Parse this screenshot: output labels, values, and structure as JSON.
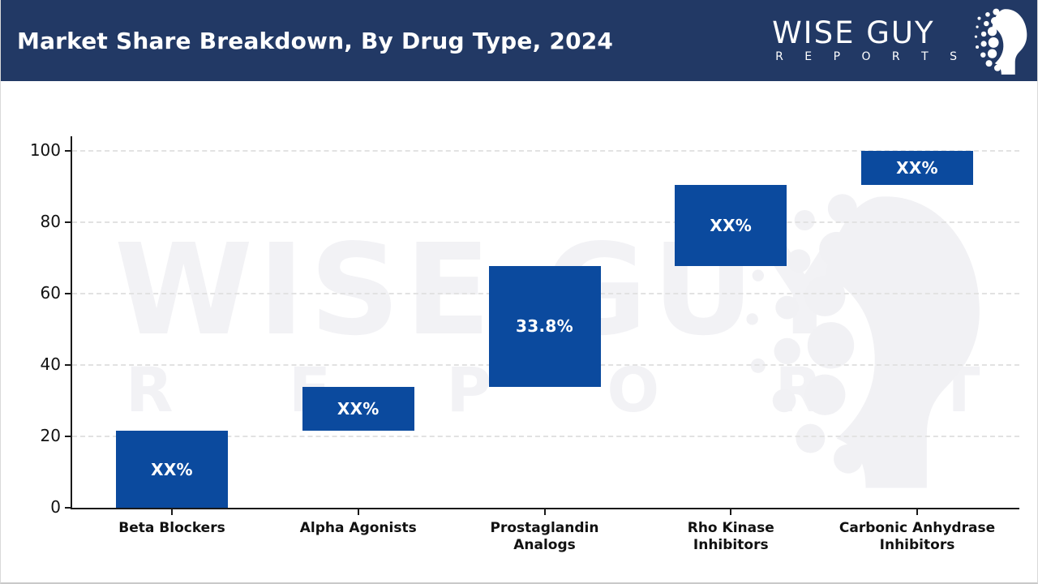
{
  "header": {
    "title": "Market Share Breakdown, By Drug Type, 2024",
    "background_color": "#223965",
    "logo": {
      "wordmark": "WISE GUY",
      "subtext": "R E P O R T S"
    }
  },
  "watermark": {
    "line1": "WISE GUY",
    "line2": "R E P O R T S"
  },
  "chart_data": {
    "type": "bar",
    "subtype": "waterfall-stacked-percentage",
    "title": "Market Share Breakdown, By Drug Type, 2024",
    "xlabel": "",
    "ylabel": "",
    "ylim": [
      0,
      100
    ],
    "yticks": [
      0,
      20,
      40,
      60,
      80,
      100
    ],
    "grid": "horizontal-dashed",
    "legend": "none",
    "bar_color": "#0b4a9e",
    "bar_label_color": "#ffffff",
    "categories": [
      "Beta Blockers",
      "Alpha Agonists",
      "Prostaglandin Analogs",
      "Rho Kinase Inhibitors",
      "Carbonic Anhydrase Inhibitors"
    ],
    "category_lines": [
      [
        "Beta Blockers"
      ],
      [
        "Alpha Agonists"
      ],
      [
        "Prostaglandin",
        "Analogs"
      ],
      [
        "Rho Kinase",
        "Inhibitors"
      ],
      [
        "Carbonic Anhydrase",
        "Inhibitors"
      ]
    ],
    "segments": [
      {
        "category": "Beta Blockers",
        "start": 0,
        "end": 21.5,
        "share_pct_est": 21.5,
        "label": "XX%"
      },
      {
        "category": "Alpha Agonists",
        "start": 21.5,
        "end": 33.9,
        "share_pct_est": 12.4,
        "label": "XX%"
      },
      {
        "category": "Prostaglandin Analogs",
        "start": 33.9,
        "end": 67.7,
        "share_pct_est": 33.8,
        "label": "33.8%"
      },
      {
        "category": "Rho Kinase Inhibitors",
        "start": 67.7,
        "end": 90.4,
        "share_pct_est": 22.7,
        "label": "XX%"
      },
      {
        "category": "Carbonic Anhydrase Inhibitors",
        "start": 90.4,
        "end": 100,
        "share_pct_est": 9.6,
        "label": "XX%"
      }
    ]
  }
}
